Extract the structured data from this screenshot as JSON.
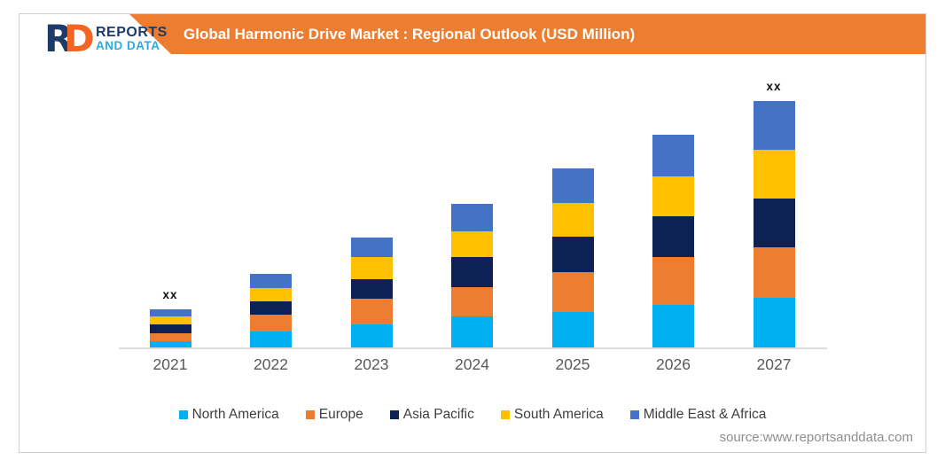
{
  "logo": {
    "mark_letter_r": "R",
    "mark_letter_d": "D",
    "line1": "REPORTS",
    "line2": "AND DATA",
    "navy": "#1b3c6b",
    "light_blue": "#29abe2",
    "orange": "#f26522"
  },
  "banner": {
    "title": "Global Harmonic Drive Market : Regional Outlook (USD Million)",
    "bg": "#ed7d31",
    "text_color": "#ffffff"
  },
  "source": {
    "text": "source:www.reportsanddata.com"
  },
  "chart_data": {
    "type": "bar",
    "stacked": true,
    "title": "Global Harmonic Drive Market : Regional Outlook (USD Million)",
    "units": "USD Million (numeric values masked as xx on the chart)",
    "categories": [
      "2021",
      "2022",
      "2023",
      "2024",
      "2025",
      "2026",
      "2027"
    ],
    "series": [
      {
        "name": "North America",
        "color": "#00b0f0",
        "values": [
          7,
          18,
          26,
          35,
          40,
          48,
          56
        ]
      },
      {
        "name": "Europe",
        "color": "#ed7d31",
        "values": [
          9,
          19,
          29,
          33,
          45,
          54,
          57
        ]
      },
      {
        "name": "Asia Pacific",
        "color": "#0d2156",
        "values": [
          10,
          15,
          22,
          34,
          40,
          46,
          55
        ]
      },
      {
        "name": "South America",
        "color": "#ffc000",
        "values": [
          9,
          15,
          25,
          29,
          38,
          45,
          55
        ]
      },
      {
        "name": "Middle East & Africa",
        "color": "#4472c4",
        "values": [
          8,
          16,
          22,
          31,
          39,
          47,
          55
        ]
      }
    ],
    "totals": [
      43,
      83,
      124,
      162,
      202,
      240,
      278
    ],
    "annotations": [
      {
        "category": "2021",
        "text": "xx"
      },
      {
        "category": "2027",
        "text": "xx"
      }
    ],
    "legend_position": "bottom",
    "axes": {
      "y_axis_visible": false,
      "x_axis_line_color": "#dcdcdc"
    },
    "label_color": "#595959"
  }
}
